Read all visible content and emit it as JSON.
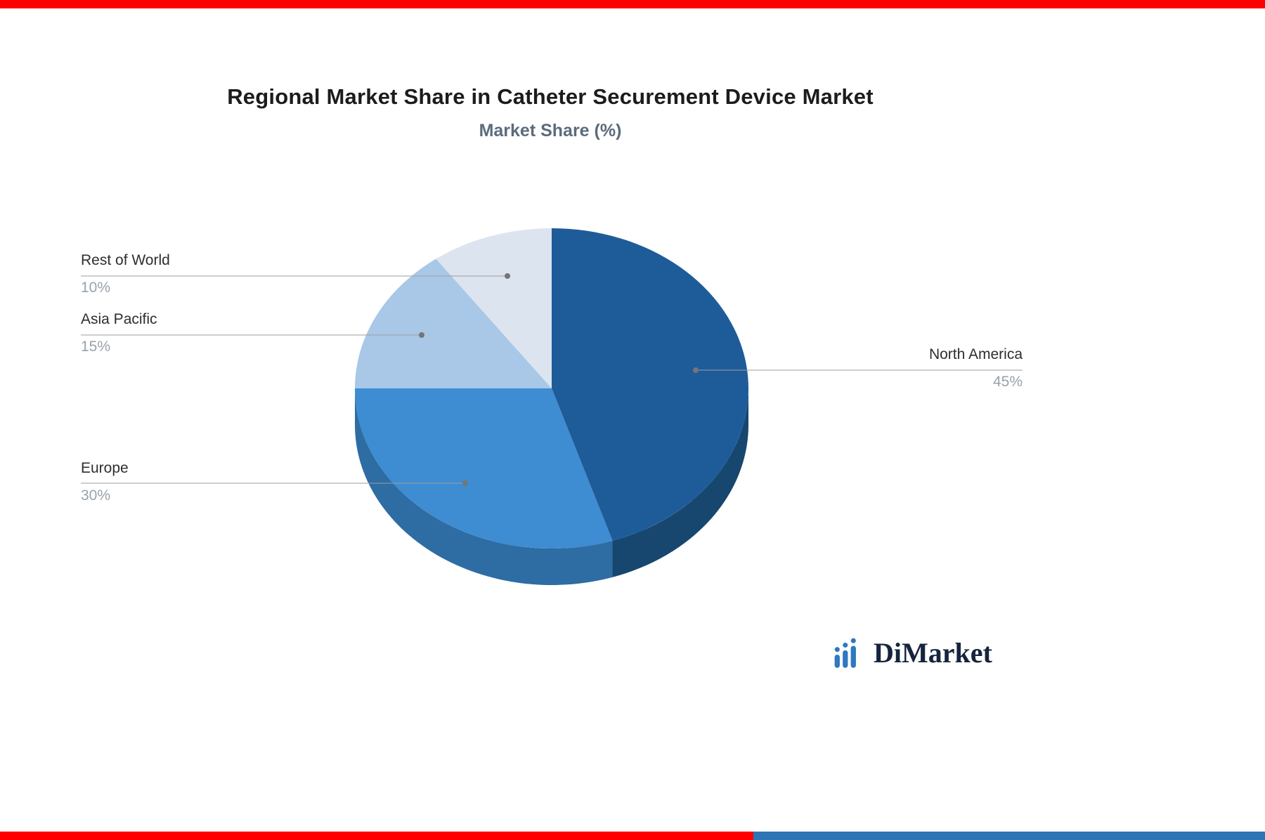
{
  "page": {
    "accent_top_color": "#FE0000",
    "accent_bottom_left_color": "#FE0000",
    "accent_bottom_right_color": "#2E75B6"
  },
  "chart_data": {
    "type": "pie",
    "title": "Regional Market Share in Catheter Securement Device Market",
    "subtitle": "Market Share (%)",
    "unit": "%",
    "effect": "3d",
    "direction": "clockwise",
    "start_angle_deg": 0,
    "legend_position": "none",
    "slices": [
      {
        "label": "North America",
        "value": 45,
        "display": "45%",
        "color": "#1E5C99",
        "side_color": "#17466F"
      },
      {
        "label": "Europe",
        "value": 30,
        "display": "30%",
        "color": "#3E8CD2",
        "side_color": "#2E6CA4"
      },
      {
        "label": "Asia Pacific",
        "value": 15,
        "display": "15%",
        "color": "#A9C7E6",
        "side_color": "#84A9CC"
      },
      {
        "label": "Rest of World",
        "value": 10,
        "display": "10%",
        "color": "#DCE4EF",
        "side_color": "#B9C6D6"
      }
    ]
  },
  "logo": {
    "text": "DiMarket",
    "icon": "bar-chart-icon",
    "text_color": "#16243D",
    "icon_color": "#2E79C0"
  }
}
